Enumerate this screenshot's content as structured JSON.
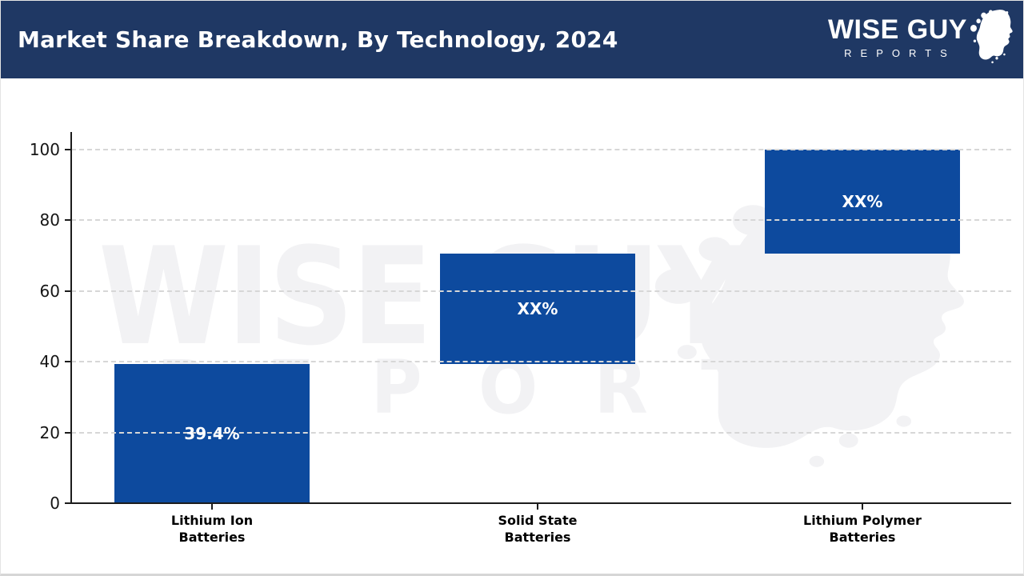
{
  "header": {
    "title": "Market Share Breakdown, By Technology, 2024",
    "background_color": "#1F3864",
    "text_color": "#FFFFFF",
    "logo": {
      "line1": "WISE GUY",
      "line2": "REPORTS"
    }
  },
  "watermark": {
    "line1": "WISE GUY",
    "line2": "REPORTS",
    "color": "#F2F2F4"
  },
  "chart_data": {
    "type": "bar",
    "subtype": "waterfall",
    "title": "Market Share Breakdown, By Technology, 2024",
    "xlabel": "",
    "ylabel": "",
    "ylim": [
      0,
      100
    ],
    "y_ticks": [
      0,
      20,
      40,
      60,
      80,
      100
    ],
    "grid": "horizontal-dashed",
    "legend": "none",
    "bar_color": "#0D4A9E",
    "value_label_color": "#FFFFFF",
    "grid_color": "#D7D7D7",
    "axis_color": "#1C1C1C",
    "tick_label_color": "#151515",
    "category_label_color": "#000000",
    "categories": [
      "Lithium Ion Batteries",
      "Solid State Batteries",
      "Lithium Polymer Batteries"
    ],
    "bars": [
      {
        "category_line1": "Lithium Ion",
        "category_line2": "Batteries",
        "start": 0,
        "end": 39.4,
        "label": "39.4%"
      },
      {
        "category_line1": "Solid State",
        "category_line2": "Batteries",
        "start": 39.4,
        "end": 70.6,
        "label": "XX%"
      },
      {
        "category_line1": "Lithium Polymer",
        "category_line2": "Batteries",
        "start": 70.6,
        "end": 100,
        "label": "XX%"
      }
    ]
  }
}
